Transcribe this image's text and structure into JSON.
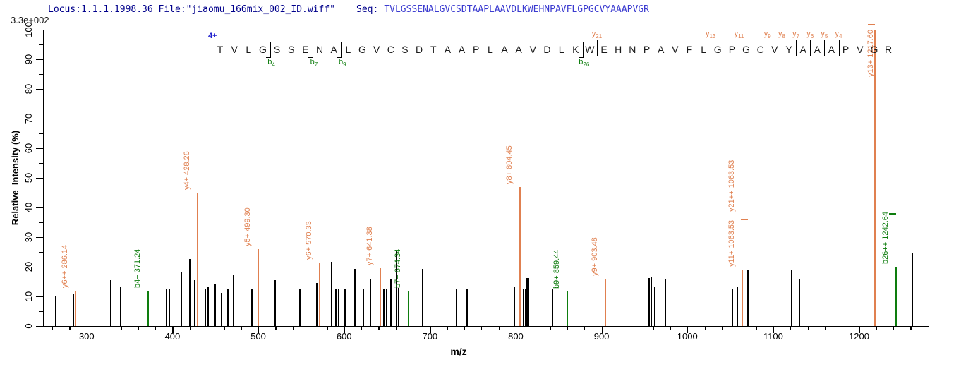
{
  "header": {
    "locus_file": "Locus:1.1.1.1998.36 File:\"jiaomu_166mix_002_ID.wiff\"",
    "seq_label": "Seq:",
    "sequence": "TVLGSSENALGVCSDTAAPLAAVDLKWEHNPAVFLGPGCVYAAAPVGR"
  },
  "base_peak_intensity": "3.3e+002",
  "peptide_annotation": {
    "charge": "4+",
    "residues": "TVLGSSENALGVCSDTAAPLAAVDLKWEHNPAVFLGPGCVYAAAPVGR",
    "b_fragments": [
      {
        "after_residue": 4,
        "ion": "b",
        "index": "4"
      },
      {
        "after_residue": 7,
        "ion": "b",
        "index": "7"
      },
      {
        "after_residue": 9,
        "ion": "b",
        "index": "9"
      },
      {
        "after_residue": 26,
        "ion": "b",
        "index": "26"
      }
    ],
    "y_fragments": [
      {
        "after_residue": 27,
        "ion": "y",
        "index": "21"
      },
      {
        "after_residue": 35,
        "ion": "y",
        "index": "13"
      },
      {
        "after_residue": 37,
        "ion": "y",
        "index": "11"
      },
      {
        "after_residue": 39,
        "ion": "y",
        "index": "9"
      },
      {
        "after_residue": 40,
        "ion": "y",
        "index": "8"
      },
      {
        "after_residue": 41,
        "ion": "y",
        "index": "7"
      },
      {
        "after_residue": 42,
        "ion": "y",
        "index": "6"
      },
      {
        "after_residue": 43,
        "ion": "y",
        "index": "5"
      },
      {
        "after_residue": 44,
        "ion": "y",
        "index": "4"
      }
    ]
  },
  "chart_data": {
    "type": "bar",
    "subtype": "ms2-fragment-spectrum",
    "title": "",
    "xlabel": "m/z",
    "ylabel": "Relative  Intensity (%)",
    "xlim": [
      250,
      1281
    ],
    "ylim": [
      0,
      100
    ],
    "grid": false,
    "x_tick_labels": [
      "300",
      "400",
      "500",
      "600",
      "700",
      "800",
      "900",
      "1000",
      "1100",
      "1200"
    ],
    "y_tick_labels": [
      "0",
      "10",
      "20",
      "30",
      "40",
      "50",
      "60",
      "70",
      "80",
      "90",
      "100"
    ],
    "x_minor_tick_step": 20,
    "x_minor_tick_range": [
      260,
      1270
    ],
    "y_minor_tick_step": 5,
    "colors": {
      "peak": "#000000",
      "y_ion": "#E08050",
      "b_ion": "#0E7D0E",
      "axis": "#000000"
    },
    "labeled_peaks": [
      {
        "mz": 286.14,
        "rel_int": 12,
        "ion": "y",
        "label": "y6++ 286.14"
      },
      {
        "mz": 371.24,
        "rel_int": 12,
        "ion": "b",
        "label": "b4+ 371.24"
      },
      {
        "mz": 428.26,
        "rel_int": 45,
        "ion": "y",
        "label": "y4+ 428.26"
      },
      {
        "mz": 499.3,
        "rel_int": 26,
        "ion": "y",
        "label": "y5+ 499.30"
      },
      {
        "mz": 570.33,
        "rel_int": 21.5,
        "ion": "y",
        "label": "y6+ 570.33"
      },
      {
        "mz": 641.38,
        "rel_int": 19.5,
        "ion": "y",
        "label": "y7+ 641.38"
      },
      {
        "mz": 674.34,
        "rel_int": 12,
        "ion": "b",
        "label": "b7+ 674.34"
      },
      {
        "mz": 804.45,
        "rel_int": 47,
        "ion": "y",
        "label": "y8+ 804.45"
      },
      {
        "mz": 859.44,
        "rel_int": 11.6,
        "ion": "b",
        "label": "b9+ 859.44"
      },
      {
        "mz": 903.48,
        "rel_int": 16,
        "ion": "y",
        "label": "y9+ 903.48"
      },
      {
        "mz": 1063.53,
        "rel_int": 19,
        "ion": "y",
        "label": "y11+ 1063.53"
      },
      {
        "mz": 1063.53,
        "rel_int": 19,
        "ion": "y",
        "label": "y21++ 1063.53",
        "label_only": true,
        "anchor_h": 38.5,
        "tick": "start",
        "tick_h": 36
      },
      {
        "mz": 1217.6,
        "rel_int": 100,
        "ion": "y",
        "label": "y13+ 1217.60",
        "anchor_h": 84,
        "side": "right",
        "tick": "end",
        "tick_h": 102
      },
      {
        "mz": 1242.64,
        "rel_int": 20,
        "ion": "b",
        "label": "b26++ 1242.64",
        "tick": "end",
        "tick_h": 38
      }
    ],
    "unlabeled_peaks": [
      [
        263,
        10
      ],
      [
        284,
        11
      ],
      [
        327,
        15.5
      ],
      [
        339,
        13
      ],
      [
        392,
        12.5
      ],
      [
        396,
        12.5
      ],
      [
        410,
        18.3
      ],
      [
        419.5,
        22.7
      ],
      [
        425.5,
        15.5
      ],
      [
        437.5,
        12.5
      ],
      [
        441,
        13
      ],
      [
        449,
        14
      ],
      [
        456,
        11.3
      ],
      [
        464,
        12.5
      ],
      [
        470,
        17.5
      ],
      [
        492,
        12.3
      ],
      [
        509.5,
        15
      ],
      [
        519,
        15.5
      ],
      [
        535,
        12.4
      ],
      [
        548,
        12.4
      ],
      [
        567.5,
        14.5
      ],
      [
        571.3,
        20.5
      ],
      [
        584.9,
        21.7
      ],
      [
        589.5,
        12.5
      ],
      [
        592.5,
        12.5
      ],
      [
        600.5,
        12.4
      ],
      [
        612,
        19.3
      ],
      [
        615.5,
        18.3
      ],
      [
        622,
        12.4
      ],
      [
        630,
        15.6
      ],
      [
        645.7,
        12.4
      ],
      [
        648.5,
        12.4
      ],
      [
        654,
        15.6
      ],
      [
        660.4,
        25.5
      ],
      [
        663,
        12.8
      ],
      [
        691,
        19.3
      ],
      [
        730,
        12.4
      ],
      [
        742.5,
        12.4
      ],
      [
        775,
        16
      ],
      [
        797.5,
        13.2
      ],
      [
        808.2,
        12.4
      ],
      [
        810.7,
        12.5
      ],
      [
        812.3,
        16.1
      ],
      [
        814,
        16.3
      ],
      [
        842,
        12.4
      ],
      [
        909.2,
        12.4
      ],
      [
        955,
        16.1
      ],
      [
        957,
        16.5
      ],
      [
        961,
        13
      ],
      [
        965,
        12.2
      ],
      [
        974,
        15.7
      ],
      [
        1052,
        12.4
      ],
      [
        1057.8,
        13
      ],
      [
        1070,
        18.7
      ],
      [
        1121,
        18.9
      ],
      [
        1130,
        15.7
      ],
      [
        1261.5,
        24.5
      ]
    ]
  }
}
